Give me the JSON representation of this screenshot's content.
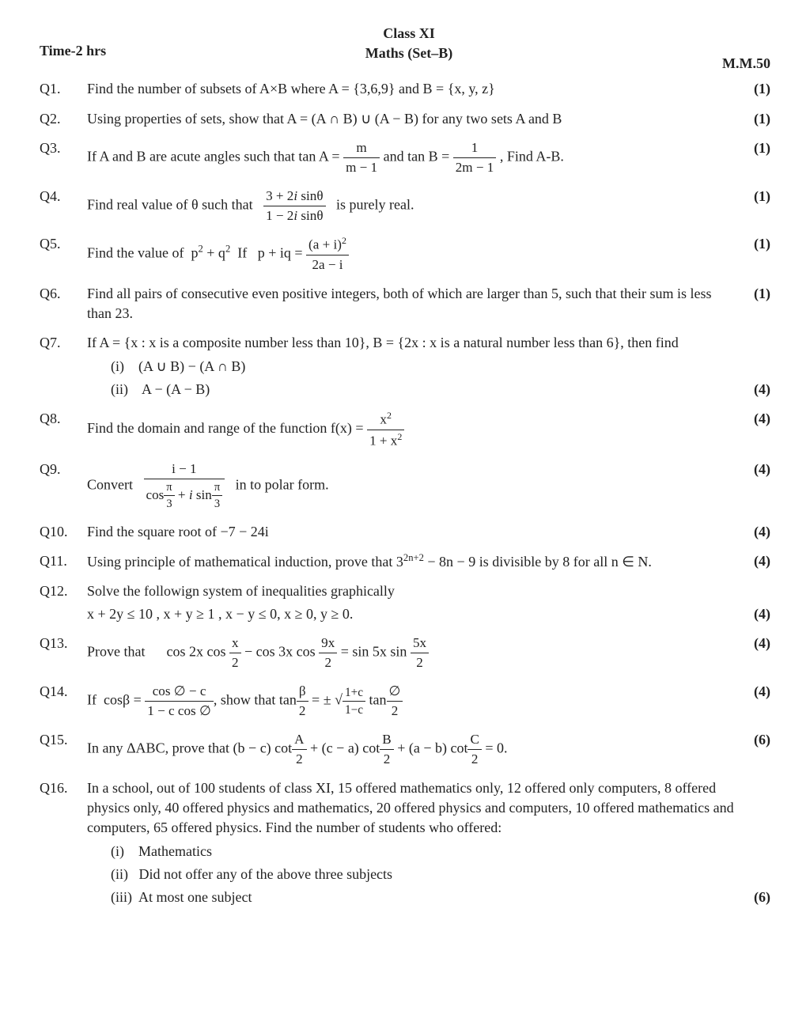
{
  "header": {
    "class": "Class XI",
    "subject": "Maths (Set–B)",
    "time": "Time-2 hrs",
    "mm": "M.M.50"
  },
  "questions": [
    {
      "num": "Q1.",
      "marks": "(1)",
      "text": "Find the number of subsets of A×B where A = {3,6,9} and B = {x, y, z}"
    },
    {
      "num": "Q2.",
      "marks": "(1)",
      "text": "Using properties of sets, show that  A = (A ∩ B) ∪ (A − B)  for any two sets A and B"
    },
    {
      "num": "Q3.",
      "marks": "(1)",
      "text_html": "If A and B are acute angles such that tan A = <span class='frac'><span class='num'>m</span><span class='den'>m − 1</span></span> and tan B = <span class='frac'><span class='num'>1</span><span class='den'>2m − 1</span></span> , Find A-B."
    },
    {
      "num": "Q4.",
      "marks": "(1)",
      "text_html": "Find real value of θ such that&nbsp;&nbsp; <span class='frac'><span class='num'>3 + 2<i>i</i> sinθ</span><span class='den'>1 − 2<i>i</i> sinθ</span></span> &nbsp;&nbsp;is purely real."
    },
    {
      "num": "Q5.",
      "marks": "(1)",
      "text_html": "Find the value of&nbsp; p<sup>2</sup> + q<sup>2</sup> &nbsp;If &nbsp; p + iq = <span class='frac'><span class='num'>(a + i)<sup>2</sup></span><span class='den'>2a − i</span></span>"
    },
    {
      "num": "Q6.",
      "marks": "(1)",
      "text": "Find all pairs of consecutive even positive integers, both of which are larger than 5, such that their sum is less than 23."
    },
    {
      "num": "Q7.",
      "marks": "(4)",
      "text": "If A = {x : x is a composite number less than 10},  B = {2x : x is a natural number less than 6}, then find",
      "subs": [
        "(i)    (A ∪ B) − (A ∩ B)",
        "(ii)    A − (A − B)"
      ]
    },
    {
      "num": "Q8.",
      "marks": "(4)",
      "text_html": "Find the domain and range of the function f(x) = <span class='frac'><span class='num'>x<sup>2</sup></span><span class='den'>1 + x<sup>2</sup></span></span>"
    },
    {
      "num": "Q9.",
      "marks": "(4)",
      "text_html": "Convert&nbsp;&nbsp; <span class='frac'><span class='num'>i − 1</span><span class='den'>cos<span class='frac' style='font-size:0.85em'><span class='num'>π</span><span class='den'>3</span></span> + <i>i</i> sin<span class='frac' style='font-size:0.85em'><span class='num'>π</span><span class='den'>3</span></span></span></span> &nbsp;&nbsp;in to polar form."
    },
    {
      "num": "Q10.",
      "marks": "(4)",
      "text": "Find the square root of    −7 − 24i"
    },
    {
      "num": "Q11.",
      "marks": "(4)",
      "text_html": "Using principle of mathematical induction, prove that 3<sup>2n+2</sup> − 8n − 9 is divisible by 8 for all n ∈ N."
    },
    {
      "num": "Q12.",
      "marks": "(4)",
      "text": "Solve the followign system of inequalities graphically",
      "subs_plain": "x + 2y ≤ 10 ,   x + y ≥ 1 ,   x − y ≤ 0,   x ≥ 0,   y ≥ 0."
    },
    {
      "num": "Q13.",
      "marks": "(4)",
      "text_html": "Prove that &nbsp;&nbsp;&nbsp;&nbsp; cos 2x cos <span class='frac'><span class='num'>x</span><span class='den'>2</span></span> − cos 3x cos <span class='frac'><span class='num'>9x</span><span class='den'>2</span></span> = sin 5x sin <span class='frac'><span class='num'>5x</span><span class='den'>2</span></span>"
    },
    {
      "num": "Q14.",
      "marks": "(4)",
      "text_html": "If &nbsp;cosβ = <span class='frac'><span class='num'>cos ∅ − c</span><span class='den'>1 − c cos ∅</span></span>, show that tan<span class='frac'><span class='num'>β</span><span class='den'>2</span></span> = ± √<span style='text-decoration:overline'><span class='frac' style='font-size:0.85em'><span class='num'>1+c</span><span class='den'>1−c</span></span></span> tan<span class='frac'><span class='num'>∅</span><span class='den'>2</span></span>"
    },
    {
      "num": "Q15.",
      "marks": "(6)",
      "text_html": "In any ΔABC,  prove that  (b − c) cot<span class='frac'><span class='num'>A</span><span class='den'>2</span></span> + (c − a) cot<span class='frac'><span class='num'>B</span><span class='den'>2</span></span> + (a − b) cot<span class='frac'><span class='num'>C</span><span class='den'>2</span></span> = 0."
    },
    {
      "num": "Q16.",
      "marks": "(6)",
      "text": "In a school, out of 100 students of class XI, 15 offered mathematics only, 12 offered only computers, 8 offered physics only, 40 offered physics and mathematics, 20 offered physics and computers, 10 offered mathematics and computers, 65 offered physics. Find the number of students who offered:",
      "subs": [
        "(i)    Mathematics",
        "(ii)   Did not offer any of the above three subjects",
        "(iii)  At most one subject"
      ]
    }
  ]
}
